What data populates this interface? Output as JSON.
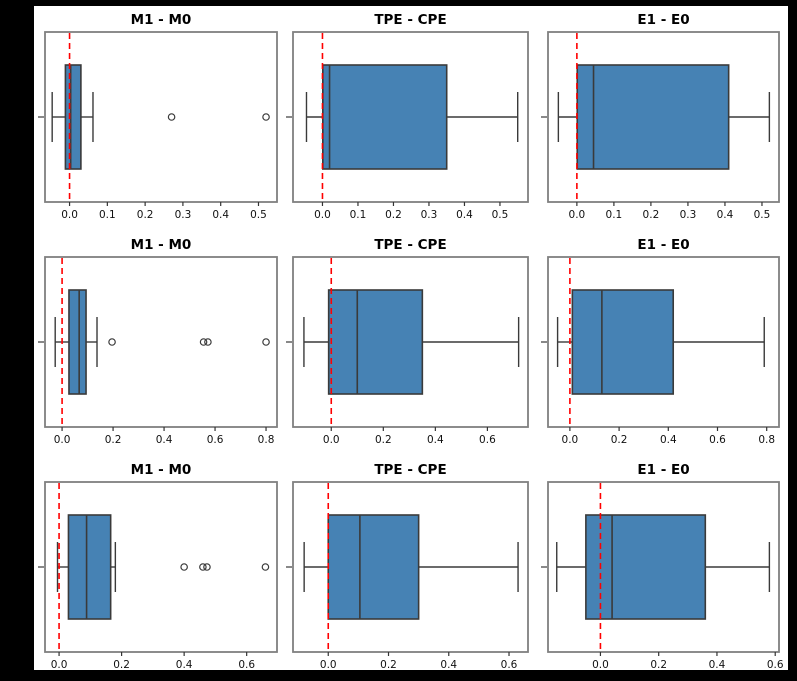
{
  "figure": {
    "outer_background": "#000000",
    "canvas_background": "#ffffff"
  },
  "chart_data": {
    "type": "bar",
    "chart_kind": "horizontal-boxplot-grid",
    "grid": {
      "rows": 3,
      "cols": 3
    },
    "reference_line": {
      "x": 0.0,
      "color": "#ff0000",
      "style": "dashed"
    },
    "style": {
      "box_fill": "#4682b4",
      "box_edge": "#3a3a3a",
      "whisker_color": "#3a3a3a",
      "median_color": "#3a3a3a",
      "outlier_edge": "#3a3a3a",
      "spine_color": "#808080",
      "grid_on": false,
      "legend": "none"
    },
    "subplots": [
      {
        "row": 0,
        "col": 0,
        "title": "M1 - M0",
        "xlim": [
          -0.065,
          0.549
        ],
        "xtick_values": [
          0.0,
          0.1,
          0.2,
          0.3,
          0.4,
          0.5
        ],
        "xtick_labels": [
          "0.0",
          "0.1",
          "0.2",
          "0.3",
          "0.4",
          "0.5"
        ],
        "box": {
          "whisker_low": -0.046,
          "q1": -0.011,
          "median": 0.003,
          "q3": 0.03,
          "whisker_high": 0.062
        },
        "outliers": [
          0.27,
          0.52
        ]
      },
      {
        "row": 0,
        "col": 1,
        "title": "TPE - CPE",
        "xlim": [
          -0.083,
          0.579
        ],
        "xtick_values": [
          0.0,
          0.1,
          0.2,
          0.3,
          0.4,
          0.5
        ],
        "xtick_labels": [
          "0.0",
          "0.1",
          "0.2",
          "0.3",
          "0.4",
          "0.5"
        ],
        "box": {
          "whisker_low": -0.045,
          "q1": 0.001,
          "median": 0.02,
          "q3": 0.35,
          "whisker_high": 0.55
        },
        "outliers": []
      },
      {
        "row": 0,
        "col": 2,
        "title": "E1 - E0",
        "xlim": [
          -0.078,
          0.546
        ],
        "xtick_values": [
          0.0,
          0.1,
          0.2,
          0.3,
          0.4,
          0.5
        ],
        "xtick_labels": [
          "0.0",
          "0.1",
          "0.2",
          "0.3",
          "0.4",
          "0.5"
        ],
        "box": {
          "whisker_low": -0.05,
          "q1": 0.001,
          "median": 0.045,
          "q3": 0.41,
          "whisker_high": 0.52
        },
        "outliers": []
      },
      {
        "row": 1,
        "col": 0,
        "title": "M1 - M0",
        "xlim": [
          -0.067,
          0.843
        ],
        "xtick_values": [
          0.0,
          0.2,
          0.4,
          0.6,
          0.8
        ],
        "xtick_labels": [
          "0.0",
          "0.2",
          "0.4",
          "0.6",
          "0.8"
        ],
        "box": {
          "whisker_low": -0.027,
          "q1": 0.027,
          "median": 0.067,
          "q3": 0.094,
          "whisker_high": 0.137
        },
        "outliers": [
          0.196,
          0.555,
          0.572,
          0.8
        ]
      },
      {
        "row": 1,
        "col": 1,
        "title": "TPE - CPE",
        "xlim": [
          -0.147,
          0.756
        ],
        "xtick_values": [
          0.0,
          0.2,
          0.4,
          0.6
        ],
        "xtick_labels": [
          "0.0",
          "0.2",
          "0.4",
          "0.6"
        ],
        "box": {
          "whisker_low": -0.105,
          "q1": -0.01,
          "median": 0.1,
          "q3": 0.35,
          "whisker_high": 0.72
        },
        "outliers": []
      },
      {
        "row": 1,
        "col": 2,
        "title": "E1 - E0",
        "xlim": [
          -0.089,
          0.85
        ],
        "xtick_values": [
          0.0,
          0.2,
          0.4,
          0.6,
          0.8
        ],
        "xtick_labels": [
          "0.0",
          "0.2",
          "0.4",
          "0.6",
          "0.8"
        ],
        "box": {
          "whisker_low": -0.05,
          "q1": 0.01,
          "median": 0.13,
          "q3": 0.42,
          "whisker_high": 0.79
        },
        "outliers": []
      },
      {
        "row": 2,
        "col": 0,
        "title": "M1 - M0",
        "xlim": [
          -0.045,
          0.697
        ],
        "xtick_values": [
          0.0,
          0.2,
          0.4,
          0.6
        ],
        "xtick_labels": [
          "0.0",
          "0.2",
          "0.4",
          "0.6"
        ],
        "box": {
          "whisker_low": -0.005,
          "q1": 0.03,
          "median": 0.088,
          "q3": 0.165,
          "whisker_high": 0.18
        },
        "outliers": [
          0.4,
          0.46,
          0.473,
          0.66
        ]
      },
      {
        "row": 2,
        "col": 1,
        "title": "TPE - CPE",
        "xlim": [
          -0.117,
          0.663
        ],
        "xtick_values": [
          0.0,
          0.2,
          0.4,
          0.6
        ],
        "xtick_labels": [
          "0.0",
          "0.2",
          "0.4",
          "0.6"
        ],
        "box": {
          "whisker_low": -0.08,
          "q1": 0.0,
          "median": 0.105,
          "q3": 0.3,
          "whisker_high": 0.63
        },
        "outliers": []
      },
      {
        "row": 2,
        "col": 2,
        "title": "E1 - E0",
        "xlim": [
          -0.18,
          0.613
        ],
        "xtick_values": [
          0.0,
          0.2,
          0.4,
          0.6
        ],
        "xtick_labels": [
          "0.0",
          "0.2",
          "0.4",
          "0.6"
        ],
        "box": {
          "whisker_low": -0.15,
          "q1": -0.05,
          "median": 0.04,
          "q3": 0.36,
          "whisker_high": 0.58
        },
        "outliers": []
      }
    ]
  }
}
